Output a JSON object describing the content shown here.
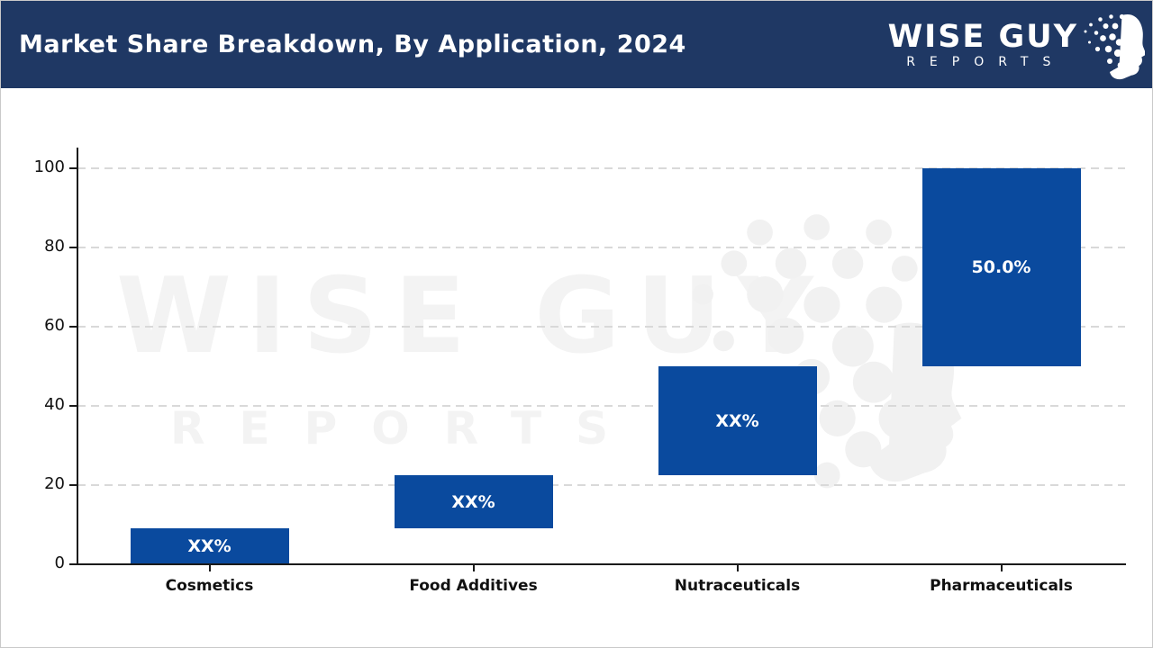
{
  "header": {
    "title": "Market Share Breakdown, By Application, 2024",
    "logo": {
      "line1": "WISE GUY",
      "line2": "REPORTS"
    }
  },
  "watermark": {
    "line1": "WISE GUY",
    "line2": "REPORTS"
  },
  "colors": {
    "header_bg": "#1f3864",
    "bar_blue": "#0a4a9e",
    "grid_gray": "#d9d9d9",
    "axis_dark": "#1a1a1a",
    "watermark_gray": "#f3f3f3",
    "frame_border": "#c9c9c9"
  },
  "chart_data": {
    "type": "bar",
    "subtype": "waterfall-floating-bars",
    "title": "Market Share Breakdown, By Application, 2024",
    "categories": [
      "Cosmetics",
      "Food Additives",
      "Nutraceuticals",
      "Pharmaceuticals"
    ],
    "segments": [
      {
        "category": "Cosmetics",
        "start": 0,
        "end": 9,
        "label": "XX%"
      },
      {
        "category": "Food Additives",
        "start": 9,
        "end": 22.5,
        "label": "XX%"
      },
      {
        "category": "Nutraceuticals",
        "start": 22.5,
        "end": 50,
        "label": "XX%"
      },
      {
        "category": "Pharmaceuticals",
        "start": 50,
        "end": 100,
        "label": "50.0%"
      }
    ],
    "xlabel": "",
    "ylabel": "",
    "ylim": [
      0,
      100
    ],
    "yticks": [
      0,
      20,
      40,
      60,
      80,
      100
    ],
    "grid": "horizontal-dashed",
    "legend": "none",
    "bar_color": "#0a4a9e",
    "bar_label_color": "#ffffff"
  }
}
